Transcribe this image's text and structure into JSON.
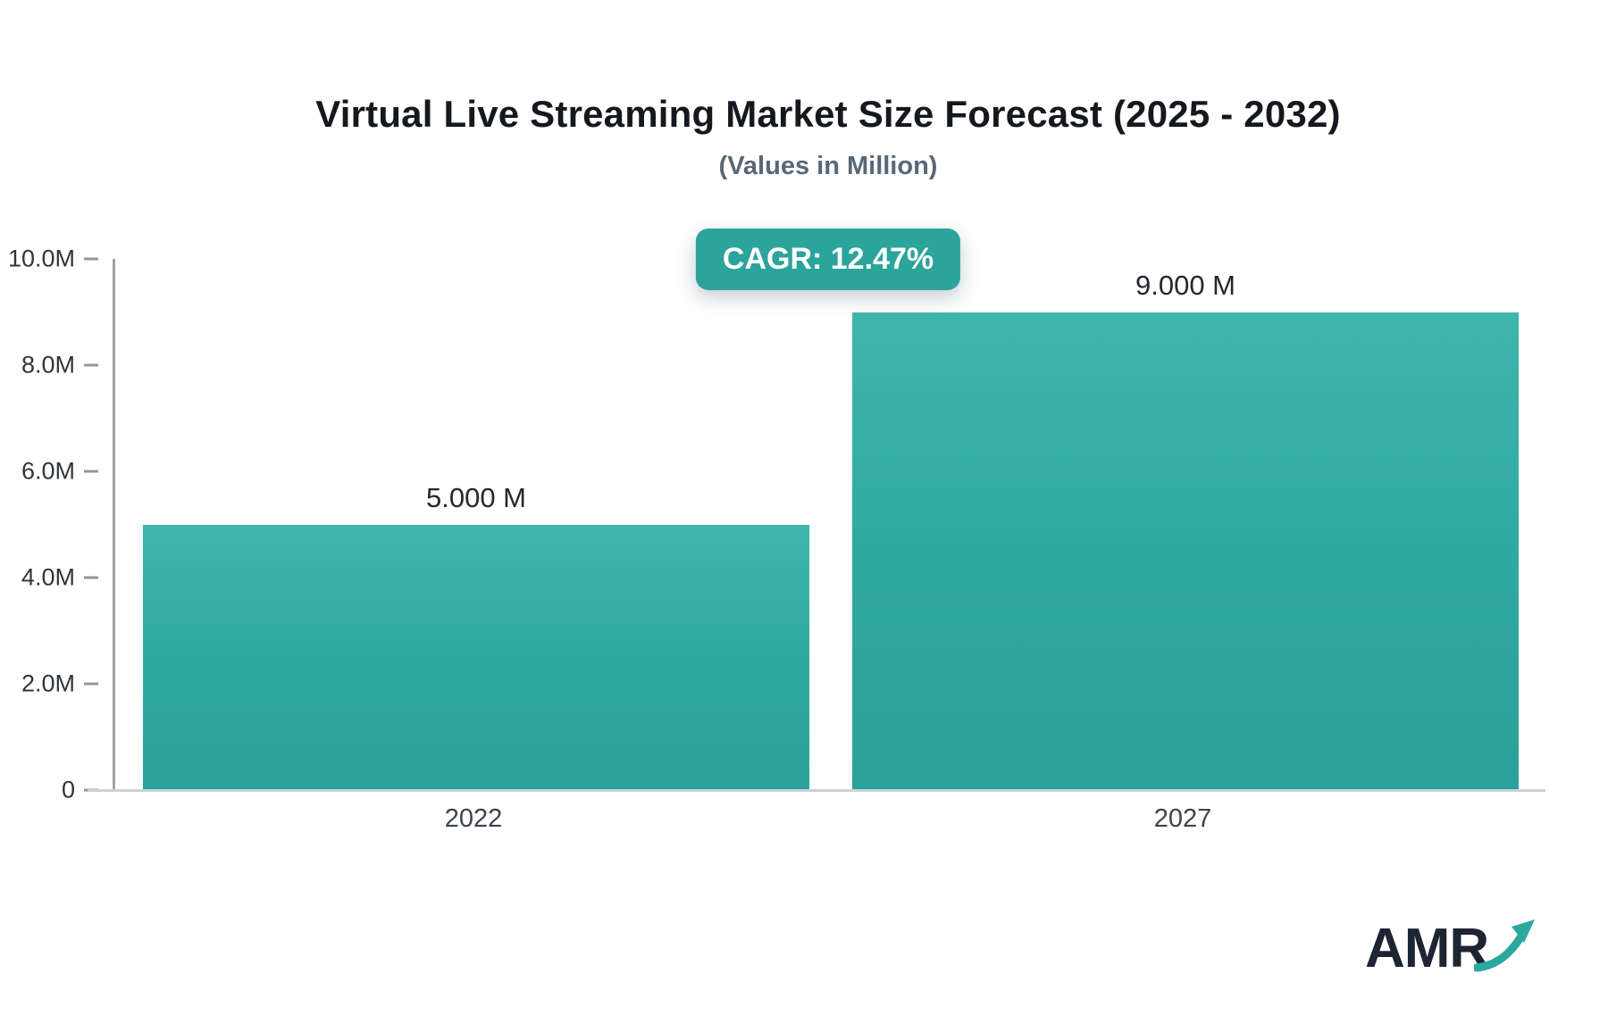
{
  "header": {
    "title": "Virtual Live Streaming Market Size Forecast (2025 - 2032)",
    "subtitle": "(Values in Million)",
    "cagr_badge": "CAGR: 12.47%"
  },
  "chart_data": {
    "type": "bar",
    "title": "Virtual Live Streaming Market Size Forecast (2025 - 2032)",
    "subtitle": "(Values in Million)",
    "cagr_label": "CAGR: 12.47%",
    "cagr_percent": 12.47,
    "unit": "Million",
    "categories": [
      "2022",
      "2027"
    ],
    "values": [
      5.0,
      9.0
    ],
    "value_labels": [
      "5.000 M",
      "9.000 M"
    ],
    "ylim": [
      0,
      10
    ],
    "yticks": [
      {
        "value": 0,
        "label": "0"
      },
      {
        "value": 2,
        "label": "2.0M"
      },
      {
        "value": 4,
        "label": "4.0M"
      },
      {
        "value": 6,
        "label": "6.0M"
      },
      {
        "value": 8,
        "label": "8.0M"
      },
      {
        "value": 10,
        "label": "10.0M"
      }
    ],
    "grid": false,
    "legend": false,
    "bar_color_top": "#3db6ac",
    "bar_color_bottom": "#2aa299"
  },
  "branding": {
    "logo_text": "AMR"
  },
  "colors": {
    "accent": "#2ba49b",
    "badge_bg": "#2ba49b",
    "title_text": "#15181d",
    "subtitle_text": "#5a6876",
    "axis_text": "#2f353b",
    "axis_line": "#9aa3aa"
  }
}
